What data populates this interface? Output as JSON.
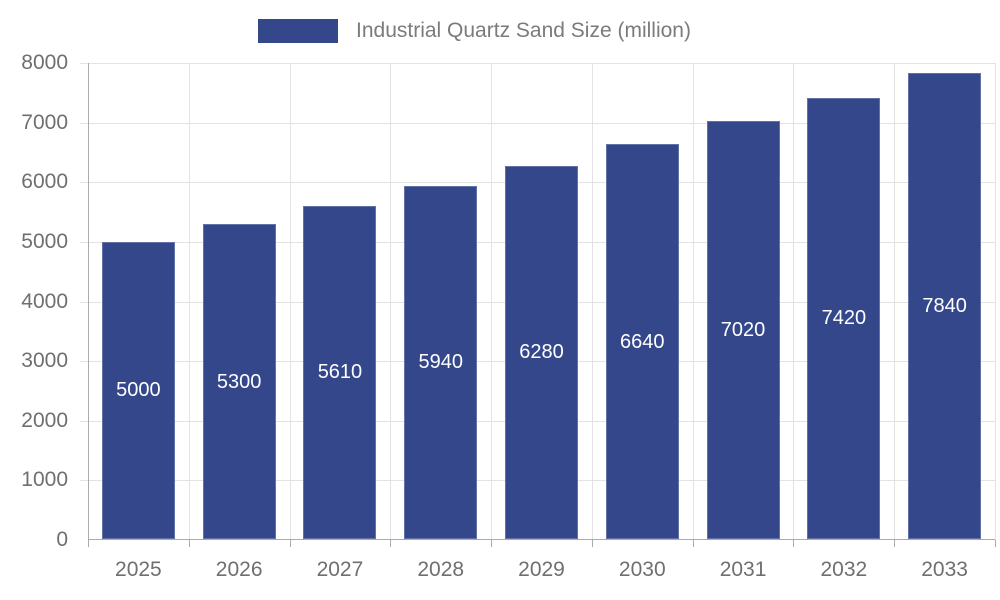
{
  "chart_data": {
    "type": "bar",
    "title": "Industrial Quartz Sand Size (million)",
    "categories": [
      "2025",
      "2026",
      "2027",
      "2028",
      "2029",
      "2030",
      "2031",
      "2032",
      "2033"
    ],
    "values": [
      5000,
      5300,
      5610,
      5940,
      6280,
      6640,
      7020,
      7420,
      7840
    ],
    "xlabel": "",
    "ylabel": "",
    "ylim": [
      0,
      8000
    ],
    "ytick_step": 1000,
    "grid": true,
    "legend_position": "top",
    "value_labels": "inside-center",
    "colors": {
      "bar": "#34478b",
      "bar_edge": "#c3c8de",
      "grid": "#e3e3e3",
      "axis": "#ababab",
      "tick_label": "#6f6f6f",
      "value_label": "#ffffff",
      "legend_text": "#7b7b7b"
    }
  }
}
